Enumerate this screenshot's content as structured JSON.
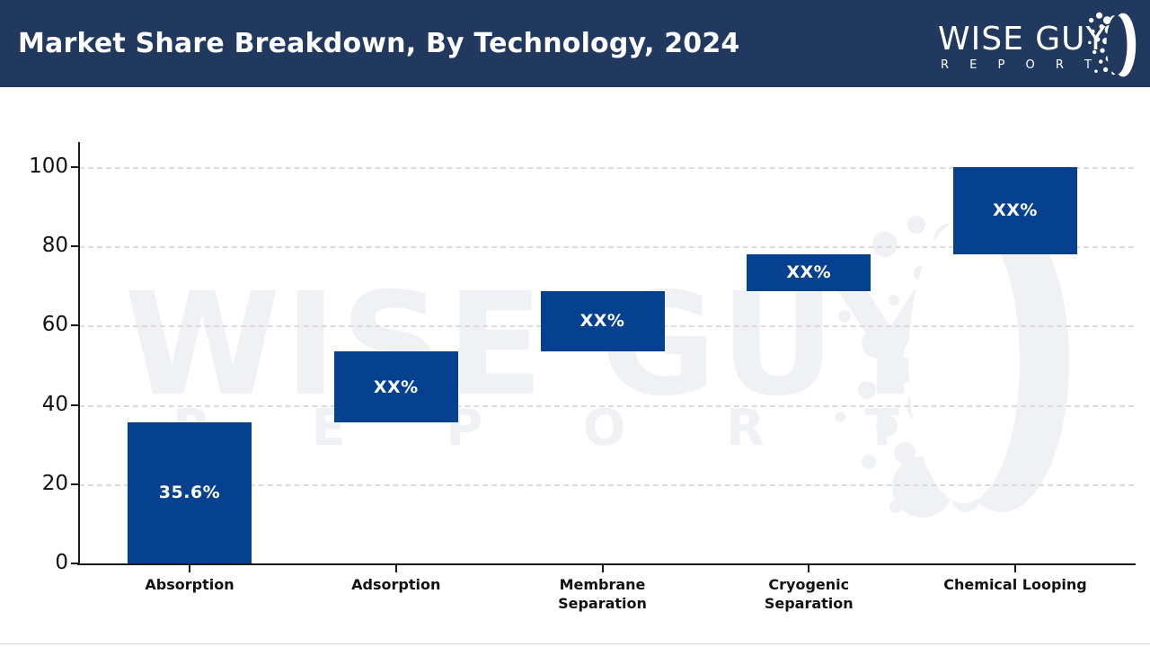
{
  "header": {
    "title": "Market Share Breakdown, By Technology, 2024",
    "bg_color": "#21395e",
    "logo": {
      "line1": "WISE GUY",
      "line2": "R E P O R T S"
    }
  },
  "watermark": {
    "line1": "WISE GUY",
    "line2": "R E P O R T S"
  },
  "chart_data": {
    "type": "bar",
    "subtype": "waterfall",
    "title": "Market Share Breakdown, By Technology, 2024",
    "xlabel": "",
    "ylabel": "",
    "ylim": [
      0,
      106
    ],
    "yticks": [
      0,
      20,
      40,
      60,
      80,
      100
    ],
    "grid": "horizontal-dashed",
    "legend": "none",
    "bar_color": "#05418f",
    "value_label_color": "#ffffff",
    "categories": [
      "Absorption",
      "Adsorption",
      "Membrane Separation",
      "Cryogenic Separation",
      "Chemical Looping"
    ],
    "tick_labels": [
      "Absorption",
      "Adsorption",
      "Membrane\nSeparation",
      "Cryogenic\nSeparation",
      "Chemical Looping"
    ],
    "segments": [
      {
        "category": "Absorption",
        "start": 0,
        "end": 35.6,
        "value": 35.6,
        "label": "35.6%"
      },
      {
        "category": "Adsorption",
        "start": 35.6,
        "end": 53.5,
        "value": 17.9,
        "label": "XX%"
      },
      {
        "category": "Membrane Separation",
        "start": 53.5,
        "end": 68.8,
        "value": 15.3,
        "label": "XX%"
      },
      {
        "category": "Cryogenic Separation",
        "start": 68.8,
        "end": 78.1,
        "value": 9.3,
        "label": "XX%"
      },
      {
        "category": "Chemical Looping",
        "start": 78.1,
        "end": 100,
        "value": 21.9,
        "label": "XX%"
      }
    ]
  }
}
